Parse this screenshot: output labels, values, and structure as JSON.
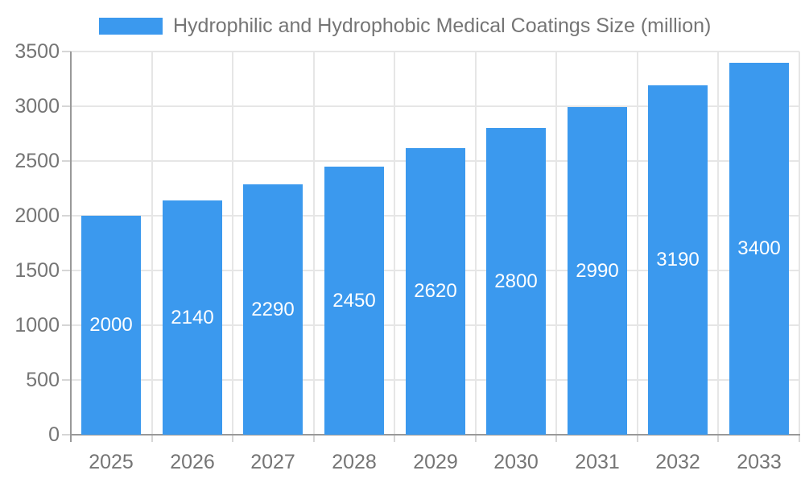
{
  "legend": {
    "label": "Hydrophilic and Hydrophobic Medical Coatings Size (million)"
  },
  "chart_data": {
    "type": "bar",
    "title": "Hydrophilic and Hydrophobic Medical Coatings Size (million)",
    "categories": [
      "2025",
      "2026",
      "2027",
      "2028",
      "2029",
      "2030",
      "2031",
      "2032",
      "2033"
    ],
    "values": [
      2000,
      2140,
      2290,
      2450,
      2620,
      2800,
      2990,
      3190,
      3400
    ],
    "bar_value_labels": [
      "2000",
      "2140",
      "2290",
      "2450",
      "2620",
      "2800",
      "2990",
      "3190",
      "3400"
    ],
    "xlabel": "",
    "ylabel": "",
    "ylim": [
      0,
      3500
    ],
    "ytick_step": 500,
    "ytick_labels": [
      "0",
      "500",
      "1000",
      "1500",
      "2000",
      "2500",
      "3000",
      "3500"
    ],
    "grid": true,
    "legend_position": "top",
    "colors": {
      "bar": "#3B99EE",
      "grid_line": "#E6E6E6",
      "axis_line": "#999999",
      "tick_mark": "#D6D6D6",
      "axis_text": "#757575",
      "bar_label_text": "#FFFFFF",
      "background": "#FFFFFF"
    }
  }
}
